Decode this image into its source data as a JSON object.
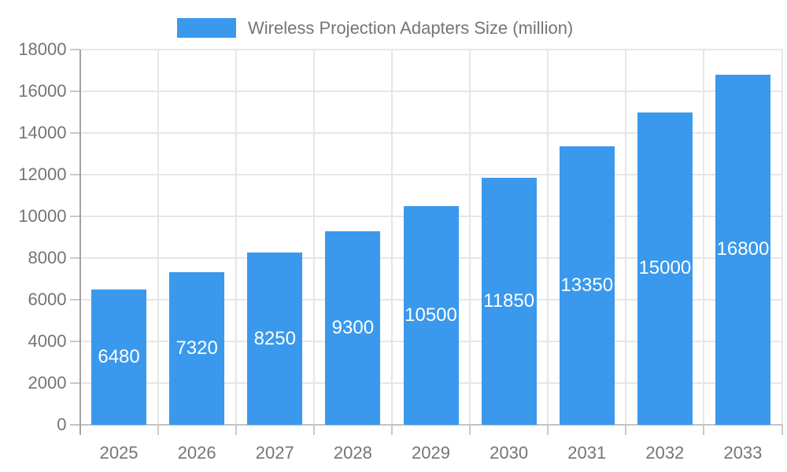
{
  "chart_data": {
    "type": "bar",
    "title": "Wireless Projection Adapters Size (million)",
    "legend": {
      "position": "top",
      "entries": [
        "Wireless Projection Adapters Size (million)"
      ]
    },
    "categories": [
      "2025",
      "2026",
      "2027",
      "2028",
      "2029",
      "2030",
      "2031",
      "2032",
      "2033"
    ],
    "series": [
      {
        "name": "Wireless Projection Adapters Size (million)",
        "values": [
          6480,
          7320,
          8250,
          9300,
          10500,
          11850,
          13350,
          15000,
          16800
        ]
      }
    ],
    "bar_value_labels": [
      "6480",
      "7320",
      "8250",
      "9300",
      "10500",
      "11850",
      "13350",
      "15000",
      "16800"
    ],
    "xlabel": "",
    "ylabel": "",
    "ylim": [
      0,
      18000
    ],
    "ytick_step": 2000,
    "ytick_labels": [
      "0",
      "2000",
      "4000",
      "6000",
      "8000",
      "10000",
      "12000",
      "14000",
      "16000",
      "18000"
    ],
    "grid": true,
    "colors": {
      "bar_fill": "#3A99EC",
      "bar_value_text": "#FFFFFF",
      "axis_text": "#757575",
      "gridline": "#E6E6E6",
      "tick": "#C9C9C9",
      "y_axis_line": "#A3A3A3",
      "x_axis_line": "#C3C3C3",
      "background": "#FFFFFF"
    }
  }
}
